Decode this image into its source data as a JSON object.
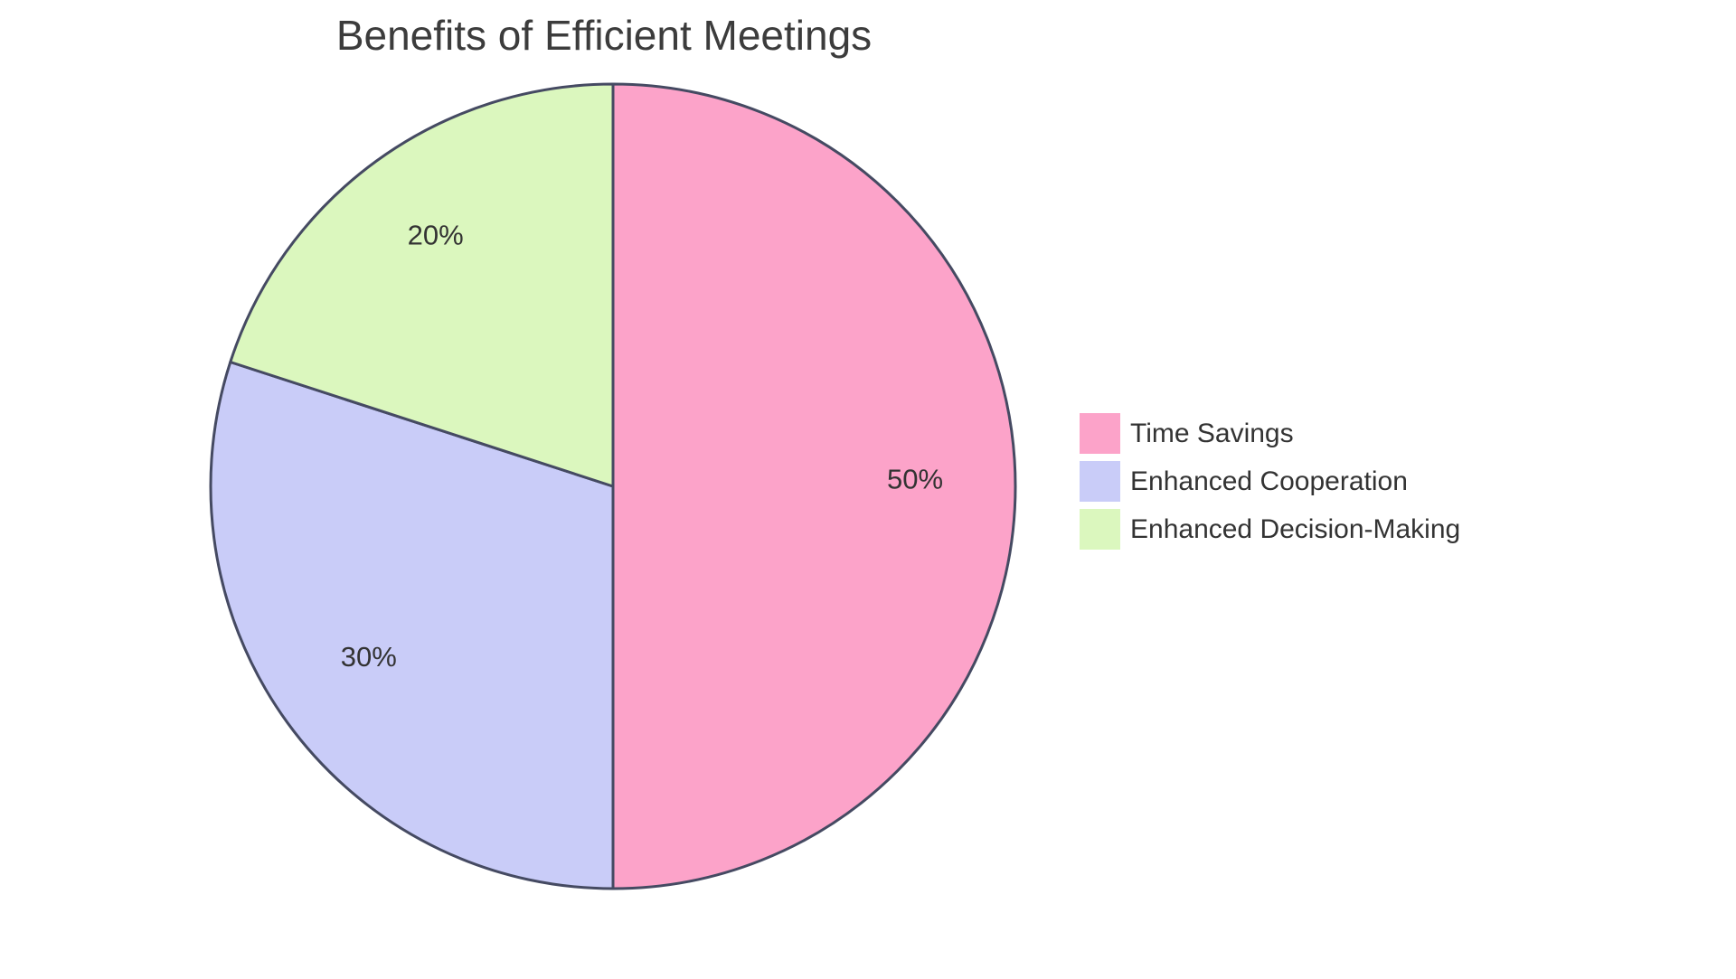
{
  "chart_data": {
    "type": "pie",
    "title": "Benefits of Efficient Meetings",
    "series": [
      {
        "label": "Time Savings",
        "value": 50,
        "display": "50%",
        "color": "#FCA3C9"
      },
      {
        "label": "Enhanced Cooperation",
        "value": 30,
        "display": "30%",
        "color": "#C9CCF8"
      },
      {
        "label": "Enhanced Decision-Making",
        "value": 20,
        "display": "20%",
        "color": "#DBF7BE"
      }
    ],
    "start_angle": "top",
    "direction": "clockwise",
    "slice_border_color": "#454A62",
    "percent_label_color": "#333333",
    "title_color": "#3C3C3C",
    "legend_text_color": "#333333",
    "legend_position": "center-right",
    "background": "#FFFFFF"
  }
}
